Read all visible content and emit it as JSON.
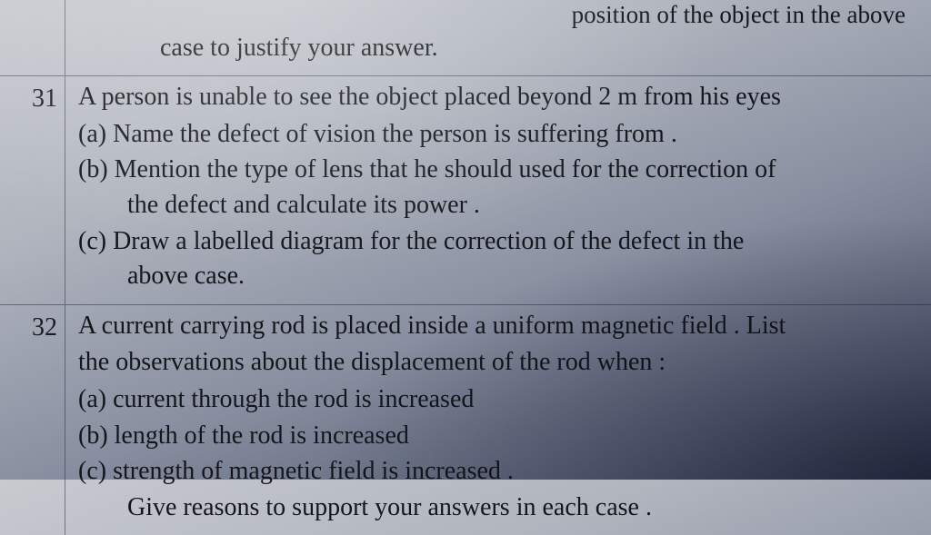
{
  "page": {
    "background_gradient": [
      "#c8cad0",
      "#b0b5be",
      "#888fa0",
      "#5a6278",
      "#3a4258"
    ],
    "border_color": "rgba(40,40,50,0.5)",
    "text_color": "#14161c",
    "font_family": "Times New Roman",
    "base_fontsize_pt": 21
  },
  "partial_row": {
    "line1": "position of the object in the above",
    "line2_indent": "case to justify your answer."
  },
  "q31": {
    "number": "31",
    "stem": "A person is unable to see the object placed beyond  2 m from his eyes",
    "a_label": "(a)",
    "a_text": "Name the defect of vision the person is suffering from .",
    "b_label": "(b)",
    "b_text1": "Mention the type of lens that he should used for the correction of",
    "b_text2": "the defect and calculate its power .",
    "c_label": "(c)",
    "c_text1": "Draw a labelled diagram for the correction of the defect in the",
    "c_text2": "above case."
  },
  "q32": {
    "number": "32",
    "stem1": "A current carrying rod is placed inside a uniform magnetic field . List",
    "stem2": "the observations about the displacement of the rod when :",
    "a_label": "(a)",
    "a_text": "current through the rod is increased",
    "b_label": "(b)",
    "b_text": "length of the rod is  increased",
    "c_label": "(c)",
    "c_text": "strength of magnetic field is increased .",
    "footer": "Give reasons to support your answers in each case ."
  }
}
